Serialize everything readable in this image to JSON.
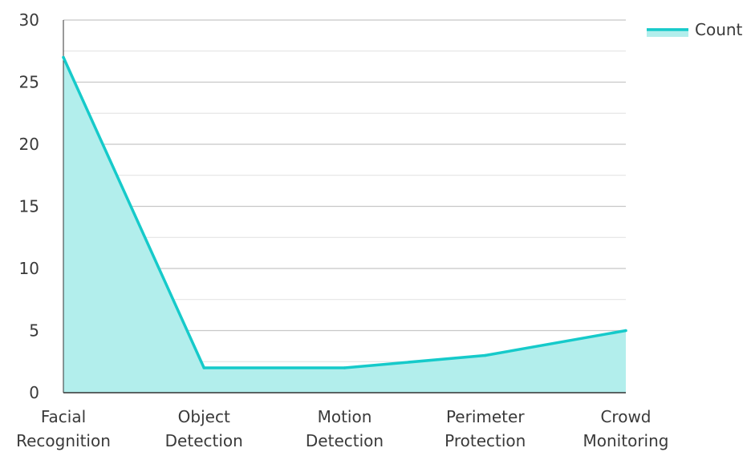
{
  "chart_data": {
    "type": "area",
    "categories": [
      [
        "Facial",
        "Recognition"
      ],
      [
        "Object",
        "Detection"
      ],
      [
        "Motion",
        "Detection"
      ],
      [
        "Perimeter",
        "Protection"
      ],
      [
        "Crowd",
        "Monitoring"
      ]
    ],
    "series": [
      {
        "name": "Count",
        "values": [
          27,
          2,
          2,
          3,
          5
        ]
      }
    ],
    "ylim": [
      0,
      30
    ],
    "yticks": [
      0,
      5,
      10,
      15,
      20,
      25,
      30
    ],
    "minor_grid_step": 2.5,
    "grid": true,
    "legend_position": "top-right",
    "colors": {
      "line": "#16CACA",
      "fill": "#B2EEEC",
      "grid": "#C8C8C8",
      "axis": "#333333"
    }
  }
}
